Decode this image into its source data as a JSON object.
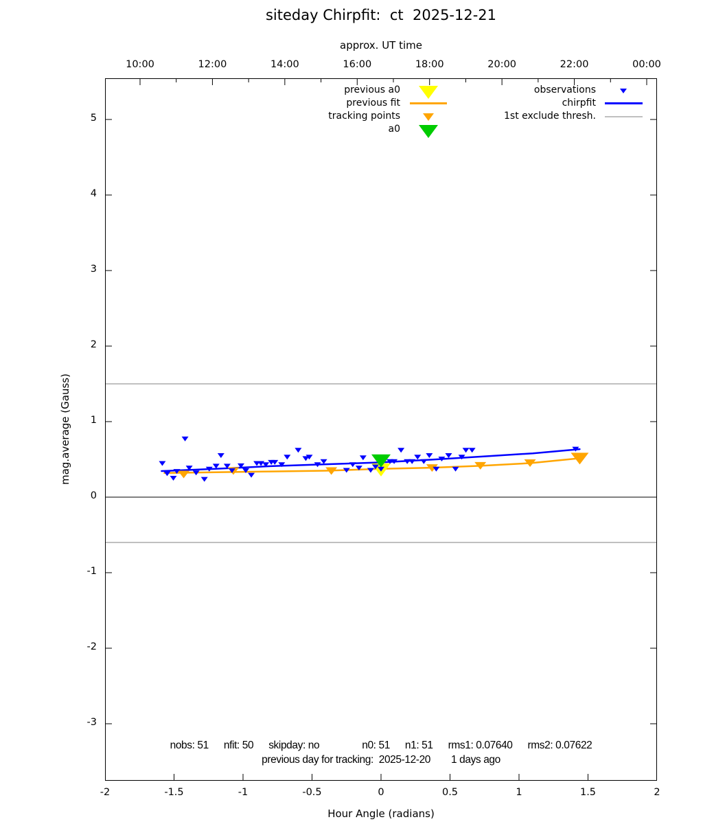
{
  "title": "siteday Chirpfit:  ct  2025-12-21",
  "top_axis": {
    "label": "approx. UT time",
    "ticks": [
      "10:00",
      "12:00",
      "14:00",
      "16:00",
      "18:00",
      "20:00",
      "22:00",
      "00:00"
    ]
  },
  "y_axis": {
    "label": "mag.average (Gauss)",
    "ticks": [
      5,
      4,
      3,
      2,
      1,
      0,
      -1,
      -2,
      -3
    ]
  },
  "x_axis": {
    "label": "Hour Angle (radians)",
    "ticks": [
      -2,
      -1.5,
      -1,
      -0.5,
      0,
      0.5,
      1,
      1.5,
      2
    ],
    "minor_tick_values": [
      -1.5,
      -1,
      -0.5,
      0,
      0.5,
      1,
      1.5
    ]
  },
  "legend": {
    "left": [
      {
        "label": "previous a0",
        "marker": "large-yellow-triangle-down"
      },
      {
        "label": "previous fit",
        "marker": "orange-line"
      },
      {
        "label": "tracking points",
        "marker": "small-orange-triangle-down"
      },
      {
        "label": "a0",
        "marker": "large-green-triangle-down"
      }
    ],
    "right": [
      {
        "label": "observations",
        "marker": "small-blue-triangle-down"
      },
      {
        "label": "chirpfit",
        "marker": "blue-line"
      },
      {
        "label": "1st exclude thresh.",
        "marker": "gray-line"
      }
    ]
  },
  "stats": {
    "nobs": "nobs: 51",
    "nfit": "nfit: 50",
    "skipday": "skipday: no",
    "n0": "n0: 51",
    "n1": "n1: 51",
    "rms1": "rms1: 0.07640",
    "rms2": "rms2: 0.07622",
    "prev_day_label": "previous day for tracking:  2025-12-20",
    "prev_day_ago": "1 days ago"
  },
  "colors": {
    "observations": "#0000ff",
    "chirpfit": "#0000ff",
    "previous_fit": "#ffa500",
    "tracking_points": "#ffa500",
    "a0": "#00cc00",
    "previous_a0": "#ffff00",
    "exclude_threshold": "#c0c0c0",
    "axis": "#000000"
  },
  "chart_data": {
    "type": "scatter",
    "title": "siteday Chirpfit:  ct  2025-12-21",
    "xlabel": "Hour Angle (radians)",
    "ylabel": "mag.average (Gauss)",
    "x2label": "approx. UT time",
    "x2ticks": [
      "10:00",
      "12:00",
      "14:00",
      "16:00",
      "18:00",
      "20:00",
      "22:00",
      "00:00"
    ],
    "xlim": [
      -2,
      2
    ],
    "ylim": [
      -3.75,
      5.55
    ],
    "grid": false,
    "legend_position": "top-inside",
    "zero_line": 0,
    "exclude_thresholds": [
      1.5,
      -0.6
    ],
    "series": [
      {
        "name": "observations",
        "type": "scatter",
        "marker": "triangle-down",
        "marker_w": 10,
        "marker_h": 7,
        "color": "#0000ff",
        "points": [
          [
            -1.585,
            0.445
          ],
          [
            -1.55,
            0.31
          ],
          [
            -1.505,
            0.25
          ],
          [
            -1.48,
            0.34
          ],
          [
            -1.42,
            0.77
          ],
          [
            -1.39,
            0.385
          ],
          [
            -1.34,
            0.32
          ],
          [
            -1.28,
            0.235
          ],
          [
            -1.245,
            0.37
          ],
          [
            -1.195,
            0.41
          ],
          [
            -1.16,
            0.55
          ],
          [
            -1.115,
            0.41
          ],
          [
            -1.08,
            0.35
          ],
          [
            -1.015,
            0.415
          ],
          [
            -0.98,
            0.35
          ],
          [
            -0.94,
            0.29
          ],
          [
            -0.9,
            0.445
          ],
          [
            -0.87,
            0.445
          ],
          [
            -0.835,
            0.43
          ],
          [
            -0.795,
            0.46
          ],
          [
            -0.77,
            0.46
          ],
          [
            -0.72,
            0.43
          ],
          [
            -0.68,
            0.53
          ],
          [
            -0.6,
            0.62
          ],
          [
            -0.545,
            0.51
          ],
          [
            -0.52,
            0.53
          ],
          [
            -0.46,
            0.43
          ],
          [
            -0.415,
            0.47
          ],
          [
            -0.25,
            0.355
          ],
          [
            -0.205,
            0.43
          ],
          [
            -0.16,
            0.385
          ],
          [
            -0.13,
            0.52
          ],
          [
            -0.075,
            0.355
          ],
          [
            -0.04,
            0.4
          ],
          [
            0.0,
            0.37
          ],
          [
            0.065,
            0.47
          ],
          [
            0.095,
            0.47
          ],
          [
            0.145,
            0.62
          ],
          [
            0.19,
            0.47
          ],
          [
            0.225,
            0.47
          ],
          [
            0.265,
            0.53
          ],
          [
            0.31,
            0.47
          ],
          [
            0.35,
            0.55
          ],
          [
            0.4,
            0.37
          ],
          [
            0.44,
            0.505
          ],
          [
            0.49,
            0.55
          ],
          [
            0.54,
            0.37
          ],
          [
            0.585,
            0.53
          ],
          [
            0.615,
            0.62
          ],
          [
            0.66,
            0.62
          ],
          [
            1.41,
            0.635
          ]
        ]
      },
      {
        "name": "chirpfit",
        "type": "line",
        "color": "#0000ff",
        "width": 2.5,
        "points": [
          [
            -1.59,
            0.345
          ],
          [
            -1.2,
            0.375
          ],
          [
            -0.8,
            0.41
          ],
          [
            -0.4,
            0.435
          ],
          [
            0,
            0.46
          ],
          [
            0.4,
            0.5
          ],
          [
            0.8,
            0.545
          ],
          [
            1.1,
            0.58
          ],
          [
            1.44,
            0.635
          ]
        ]
      },
      {
        "name": "previous fit",
        "type": "line",
        "color": "#ffa500",
        "width": 2.5,
        "points": [
          [
            -1.57,
            0.32
          ],
          [
            -1.2,
            0.33
          ],
          [
            -0.8,
            0.34
          ],
          [
            -0.4,
            0.35
          ],
          [
            0,
            0.375
          ],
          [
            0.37,
            0.39
          ],
          [
            0.72,
            0.415
          ],
          [
            1.08,
            0.45
          ],
          [
            1.44,
            0.515
          ]
        ]
      },
      {
        "name": "previous a0",
        "type": "scatter",
        "marker": "triangle-down",
        "marker_w": 28,
        "marker_h": 19,
        "color": "#ffff00",
        "points": [
          [
            0,
            0.36
          ]
        ]
      },
      {
        "name": "a0",
        "type": "scatter",
        "marker": "triangle-down",
        "marker_w": 28,
        "marker_h": 19,
        "color": "#00cc00",
        "points": [
          [
            0,
            0.48
          ]
        ]
      },
      {
        "name": "tracking points",
        "type": "scatter",
        "marker": "triangle-down",
        "marker_w": 17,
        "marker_h": 11,
        "color": "#ffa500",
        "last_marker_w": 26,
        "last_marker_h": 17,
        "points": [
          [
            -1.43,
            0.3
          ],
          [
            -1.07,
            0.345
          ],
          [
            -0.36,
            0.345
          ],
          [
            0.37,
            0.385
          ],
          [
            0.72,
            0.415
          ],
          [
            1.08,
            0.45
          ],
          [
            1.44,
            0.51
          ]
        ]
      }
    ]
  }
}
